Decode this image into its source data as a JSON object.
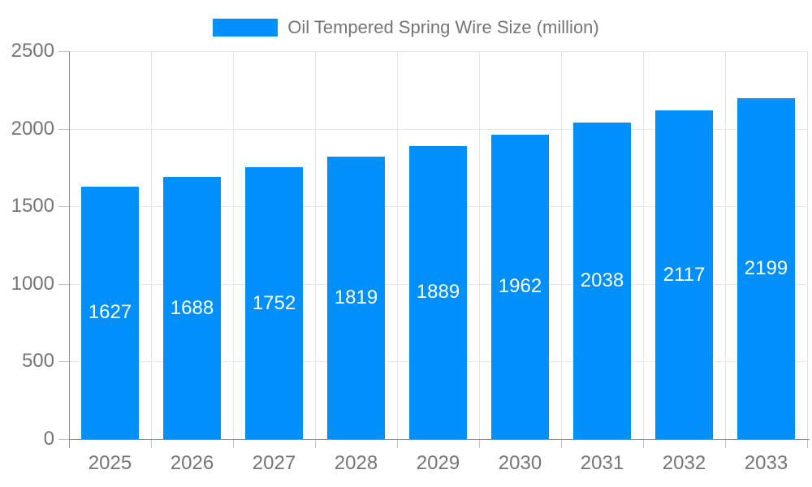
{
  "chart_data": {
    "type": "bar",
    "title": "Oil Tempered Spring Wire Size (million)",
    "series_name": "Oil Tempered Spring Wire Size (million)",
    "categories": [
      "2025",
      "2026",
      "2027",
      "2028",
      "2029",
      "2030",
      "2031",
      "2032",
      "2033"
    ],
    "values": [
      1627,
      1688,
      1752,
      1819,
      1889,
      1962,
      2038,
      2117,
      2199
    ],
    "xlabel": "",
    "ylabel": "",
    "ylim": [
      0,
      2500
    ],
    "yticks": [
      0,
      500,
      1000,
      1500,
      2000,
      2500
    ],
    "legend_position": "top-center",
    "grid": true,
    "bar_color": "#008FFB",
    "value_label_color": "#ffffff",
    "axis_label_color": "#757575"
  }
}
